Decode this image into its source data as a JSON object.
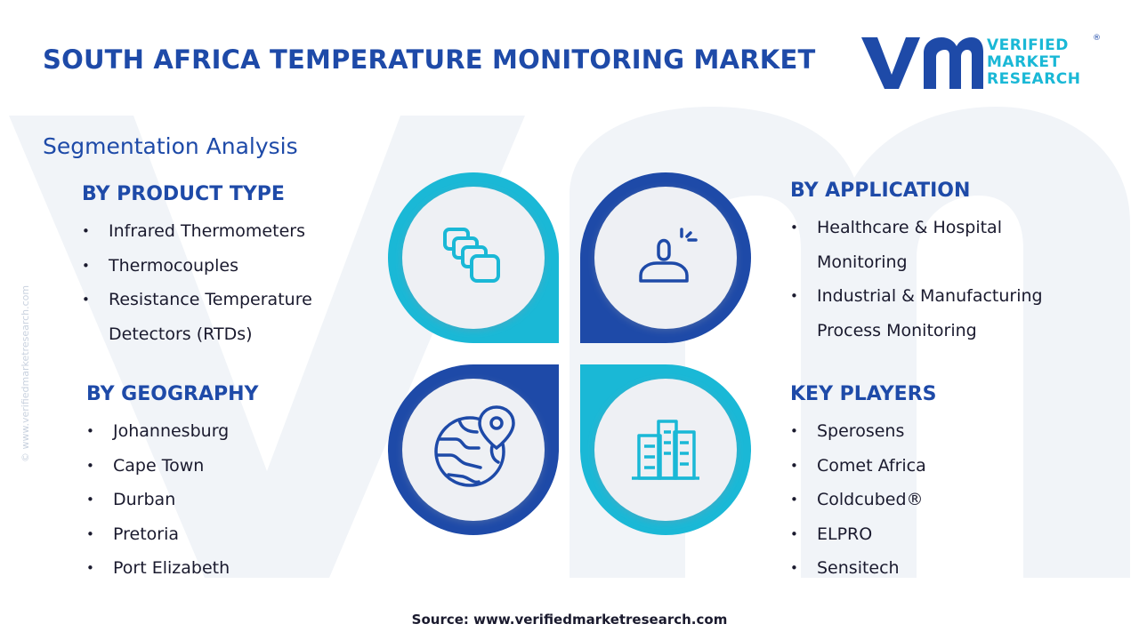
{
  "header": {
    "title": "SOUTH AFRICA TEMPERATURE MONITORING MARKET",
    "brand_line1": "VERIFIED",
    "brand_line2": "MARKET",
    "brand_line3": "RESEARCH",
    "brand_mark": "®"
  },
  "segmentation_title": "Segmentation Analysis",
  "product_type": {
    "heading": "BY PRODUCT TYPE",
    "items": [
      {
        "lines": [
          "Infrared Thermometers"
        ]
      },
      {
        "lines": [
          "Thermocouples"
        ]
      },
      {
        "lines": [
          "Resistance Temperature",
          "Detectors (RTDs)"
        ]
      }
    ]
  },
  "geography": {
    "heading": "BY GEOGRAPHY",
    "items": [
      "Johannesburg",
      "Cape Town",
      "Durban",
      "Pretoria",
      "Port Elizabeth"
    ]
  },
  "application": {
    "heading": "BY APPLICATION",
    "items": [
      {
        "lines": [
          "Healthcare & Hospital",
          "Monitoring"
        ]
      },
      {
        "lines": [
          "Industrial & Manufacturing",
          "Process Monitoring"
        ]
      }
    ]
  },
  "key_players": {
    "heading": "KEY PLAYERS",
    "items": [
      "Sperosens",
      "Comet Africa",
      "Coldcubed®",
      "ELPRO",
      "Sensitech"
    ]
  },
  "icons": {
    "top_left": "layers-icon",
    "top_right": "user-profile-icon",
    "bottom_left": "globe-location-icon",
    "bottom_right": "city-buildings-icon"
  },
  "colors": {
    "primary_blue": "#1e4aa8",
    "accent_cyan": "#1ab8d6",
    "text_dark": "#1a1a2e",
    "circle_fill": "#eef0f4"
  },
  "source": "Source: www.verifiedmarketresearch.com",
  "side_copyright": "© www.verifiedmarketresearch.com"
}
